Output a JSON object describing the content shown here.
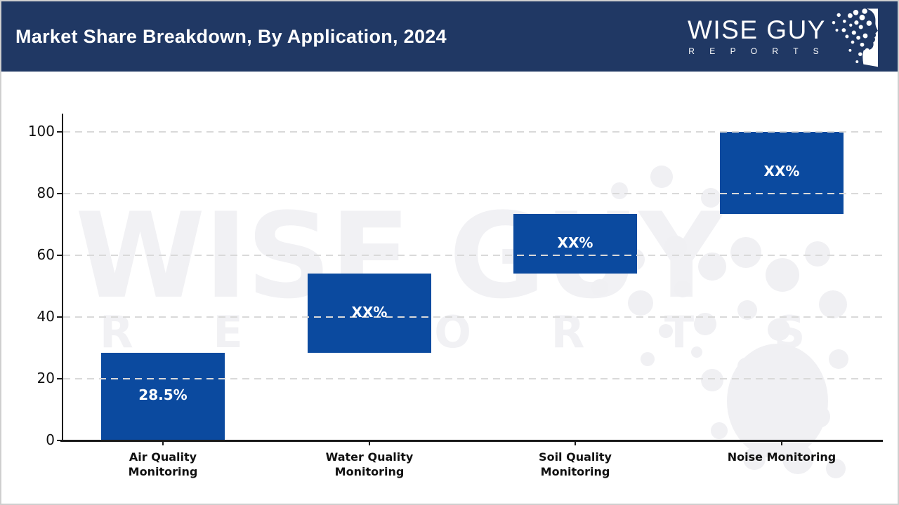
{
  "header": {
    "title": "Market Share Breakdown, By Application, 2024",
    "logo": {
      "line1": "WISE GUY",
      "line2": "R E P O R T S"
    }
  },
  "watermark": {
    "line1": "WISE GUY",
    "line2": "R E P O R T S"
  },
  "colors": {
    "header_bg": "#203864",
    "bar": "#0B4A9F",
    "grid": "#d9d9d9",
    "axis": "#1a1a1a",
    "text": "#111111",
    "bar_label": "#ffffff",
    "watermark": "#f1f1f4"
  },
  "chart_data": {
    "type": "bar",
    "subtype": "waterfall",
    "title": "Market Share Breakdown, By Application, 2024",
    "categories": [
      "Air Quality Monitoring",
      "Water Quality Monitoring",
      "Soil Quality Monitoring",
      "Noise Monitoring"
    ],
    "segments": [
      [
        0,
        28.5
      ],
      [
        28.5,
        54
      ],
      [
        54,
        73.5
      ],
      [
        73.5,
        100
      ]
    ],
    "values": [
      28.5,
      25.5,
      19.5,
      26.5
    ],
    "bar_labels": [
      "28.5%",
      "XX%",
      "XX%",
      "XX%"
    ],
    "yticks": [
      0,
      20,
      40,
      60,
      80,
      100
    ],
    "ylim": [
      0,
      100
    ],
    "xlabel": "",
    "ylabel": "",
    "grid": "horizontal-dashed",
    "legend": "none",
    "note": "XX% labels are masked values in the source image"
  }
}
